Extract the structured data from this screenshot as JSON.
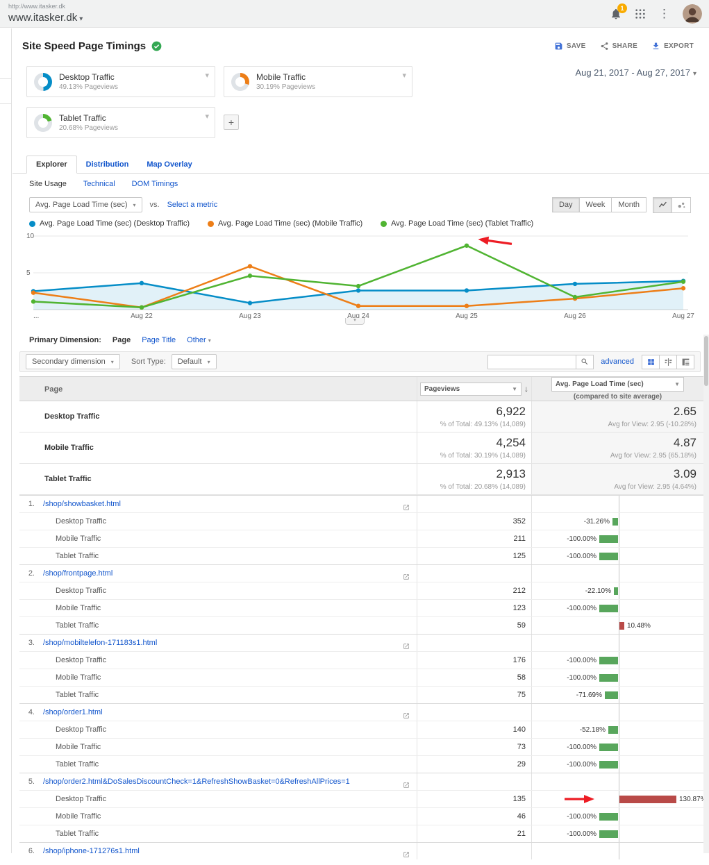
{
  "topbar": {
    "url": "http://www.itasker.dk",
    "site_name": "www.itasker.dk",
    "notification_badge": "1"
  },
  "report": {
    "title": "Site Speed Page Timings",
    "save_label": "SAVE",
    "share_label": "SHARE",
    "export_label": "EXPORT",
    "date_range": "Aug 21, 2017 - Aug 27, 2017"
  },
  "segments": [
    {
      "name": "Desktop Traffic",
      "detail": "49.13% Pageviews",
      "pct": 49.13,
      "color": "#058dc7"
    },
    {
      "name": "Mobile Traffic",
      "detail": "30.19% Pageviews",
      "pct": 30.19,
      "color": "#ed7e17"
    },
    {
      "name": "Tablet Traffic",
      "detail": "20.68% Pageviews",
      "pct": 20.68,
      "color": "#50b432"
    }
  ],
  "tabs": {
    "explorer": "Explorer",
    "distribution": "Distribution",
    "map_overlay": "Map Overlay"
  },
  "subtabs": {
    "site_usage": "Site Usage",
    "technical": "Technical",
    "dom_timings": "DOM Timings"
  },
  "metric_bar": {
    "metric_select": "Avg. Page Load Time (sec)",
    "vs_label": "vs.",
    "select_metric": "Select a metric",
    "day": "Day",
    "week": "Week",
    "month": "Month"
  },
  "chart_data": {
    "type": "line",
    "x": [
      "...",
      "Aug 22",
      "Aug 23",
      "Aug 24",
      "Aug 25",
      "Aug 26",
      "Aug 27"
    ],
    "ylim": [
      0,
      10
    ],
    "yticks": [
      5,
      10
    ],
    "grid": true,
    "legend_position": "top",
    "series": [
      {
        "name": "Avg. Page Load Time (sec) (Desktop Traffic)",
        "color": "#058dc7",
        "area": true,
        "values": [
          2.5,
          3.6,
          0.9,
          2.6,
          2.6,
          3.5,
          3.9
        ]
      },
      {
        "name": "Avg. Page Load Time (sec) (Mobile Traffic)",
        "color": "#ed7e17",
        "values": [
          2.3,
          0.3,
          5.9,
          0.5,
          0.5,
          1.5,
          2.9
        ]
      },
      {
        "name": "Avg. Page Load Time (sec) (Tablet Traffic)",
        "color": "#50b432",
        "values": [
          1.1,
          0.3,
          4.6,
          3.2,
          8.7,
          1.7,
          3.8
        ]
      }
    ],
    "annotations": [
      {
        "type": "red-arrow",
        "target": "Tablet Traffic peak on Aug 25"
      }
    ]
  },
  "primary_dimension": {
    "label": "Primary Dimension:",
    "selected": "Page",
    "options": [
      "Page",
      "Page Title",
      "Other"
    ]
  },
  "toolbar": {
    "secondary_dimension": "Secondary dimension",
    "sort_type_label": "Sort Type:",
    "sort_type_value": "Default",
    "search_value": "",
    "advanced_label": "advanced"
  },
  "table": {
    "header": {
      "page": "Page",
      "pageviews": "Pageviews",
      "metric": "Avg. Page Load Time (sec)",
      "metric_note": "(compared to site average)"
    },
    "summary": [
      {
        "label": "Desktop Traffic",
        "pageviews": "6,922",
        "pageviews_note": "% of Total: 49.13% (14,089)",
        "value": "2.65",
        "value_note": "Avg for View: 2.95 (-10.28%)"
      },
      {
        "label": "Mobile Traffic",
        "pageviews": "4,254",
        "pageviews_note": "% of Total: 30.19% (14,089)",
        "value": "4.87",
        "value_note": "Avg for View: 2.95 (65.18%)"
      },
      {
        "label": "Tablet Traffic",
        "pageviews": "2,913",
        "pageviews_note": "% of Total: 20.68% (14,089)",
        "value": "3.09",
        "value_note": "Avg for View: 2.95 (4.64%)"
      }
    ],
    "rows": [
      {
        "index": "1.",
        "page": "/shop/showbasket.html",
        "segments": [
          {
            "label": "Desktop Traffic",
            "pageviews": "352",
            "delta": -31.26,
            "delta_label": "-31.26%"
          },
          {
            "label": "Mobile Traffic",
            "pageviews": "211",
            "delta": -100,
            "delta_label": "-100.00%"
          },
          {
            "label": "Tablet Traffic",
            "pageviews": "125",
            "delta": -100,
            "delta_label": "-100.00%"
          }
        ]
      },
      {
        "index": "2.",
        "page": "/shop/frontpage.html",
        "segments": [
          {
            "label": "Desktop Traffic",
            "pageviews": "212",
            "delta": -22.1,
            "delta_label": "-22.10%"
          },
          {
            "label": "Mobile Traffic",
            "pageviews": "123",
            "delta": -100,
            "delta_label": "-100.00%"
          },
          {
            "label": "Tablet Traffic",
            "pageviews": "59",
            "delta": 10.48,
            "delta_label": "10.48%"
          }
        ]
      },
      {
        "index": "3.",
        "page": "/shop/mobiltelefon-171183s1.html",
        "segments": [
          {
            "label": "Desktop Traffic",
            "pageviews": "176",
            "delta": -100,
            "delta_label": "-100.00%"
          },
          {
            "label": "Mobile Traffic",
            "pageviews": "58",
            "delta": -100,
            "delta_label": "-100.00%"
          },
          {
            "label": "Tablet Traffic",
            "pageviews": "75",
            "delta": -71.69,
            "delta_label": "-71.69%"
          }
        ]
      },
      {
        "index": "4.",
        "page": "/shop/order1.html",
        "segments": [
          {
            "label": "Desktop Traffic",
            "pageviews": "140",
            "delta": -52.18,
            "delta_label": "-52.18%"
          },
          {
            "label": "Mobile Traffic",
            "pageviews": "73",
            "delta": -100,
            "delta_label": "-100.00%"
          },
          {
            "label": "Tablet Traffic",
            "pageviews": "29",
            "delta": -100,
            "delta_label": "-100.00%"
          }
        ]
      },
      {
        "index": "5.",
        "page": "/shop/order2.html&DoSalesDiscountCheck=1&RefreshShowBasket=0&RefreshAllPrices=1",
        "segments": [
          {
            "label": "Desktop Traffic",
            "pageviews": "135",
            "delta": 130.87,
            "delta_label": "130.87%",
            "arrow": true
          },
          {
            "label": "Mobile Traffic",
            "pageviews": "46",
            "delta": -100,
            "delta_label": "-100.00%"
          },
          {
            "label": "Tablet Traffic",
            "pageviews": "21",
            "delta": -100,
            "delta_label": "-100.00%"
          }
        ]
      },
      {
        "index": "6.",
        "page": "/shop/iphone-171276s1.html",
        "segments": []
      }
    ]
  },
  "colors": {
    "link": "#1155cc",
    "negative_bar": "#58a65c",
    "positive_bar": "#b94a48",
    "annotation_arrow": "#ed1c24"
  }
}
